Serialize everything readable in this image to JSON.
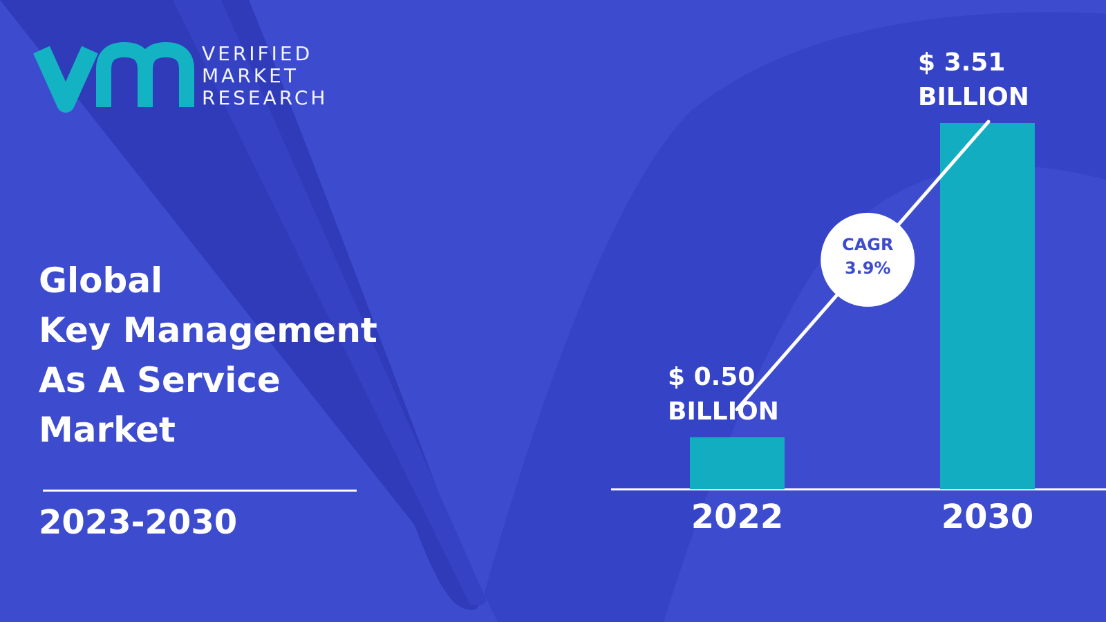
{
  "header": {
    "brand": [
      "VERIFIED",
      "MARKET",
      "RESEARCH"
    ],
    "title_lines": [
      "Global",
      "Key Management",
      "As A Service",
      "Market"
    ],
    "period": "2023-2030"
  },
  "chart_data": {
    "type": "bar",
    "categories": [
      "2022",
      "2030"
    ],
    "values": [
      0.5,
      3.51
    ],
    "value_labels": [
      "$ 0.50 BILLION",
      "$ 3.51 BILLION"
    ],
    "color": "#12adc1",
    "annotation": [
      "CAGR",
      "3.9%"
    ]
  }
}
